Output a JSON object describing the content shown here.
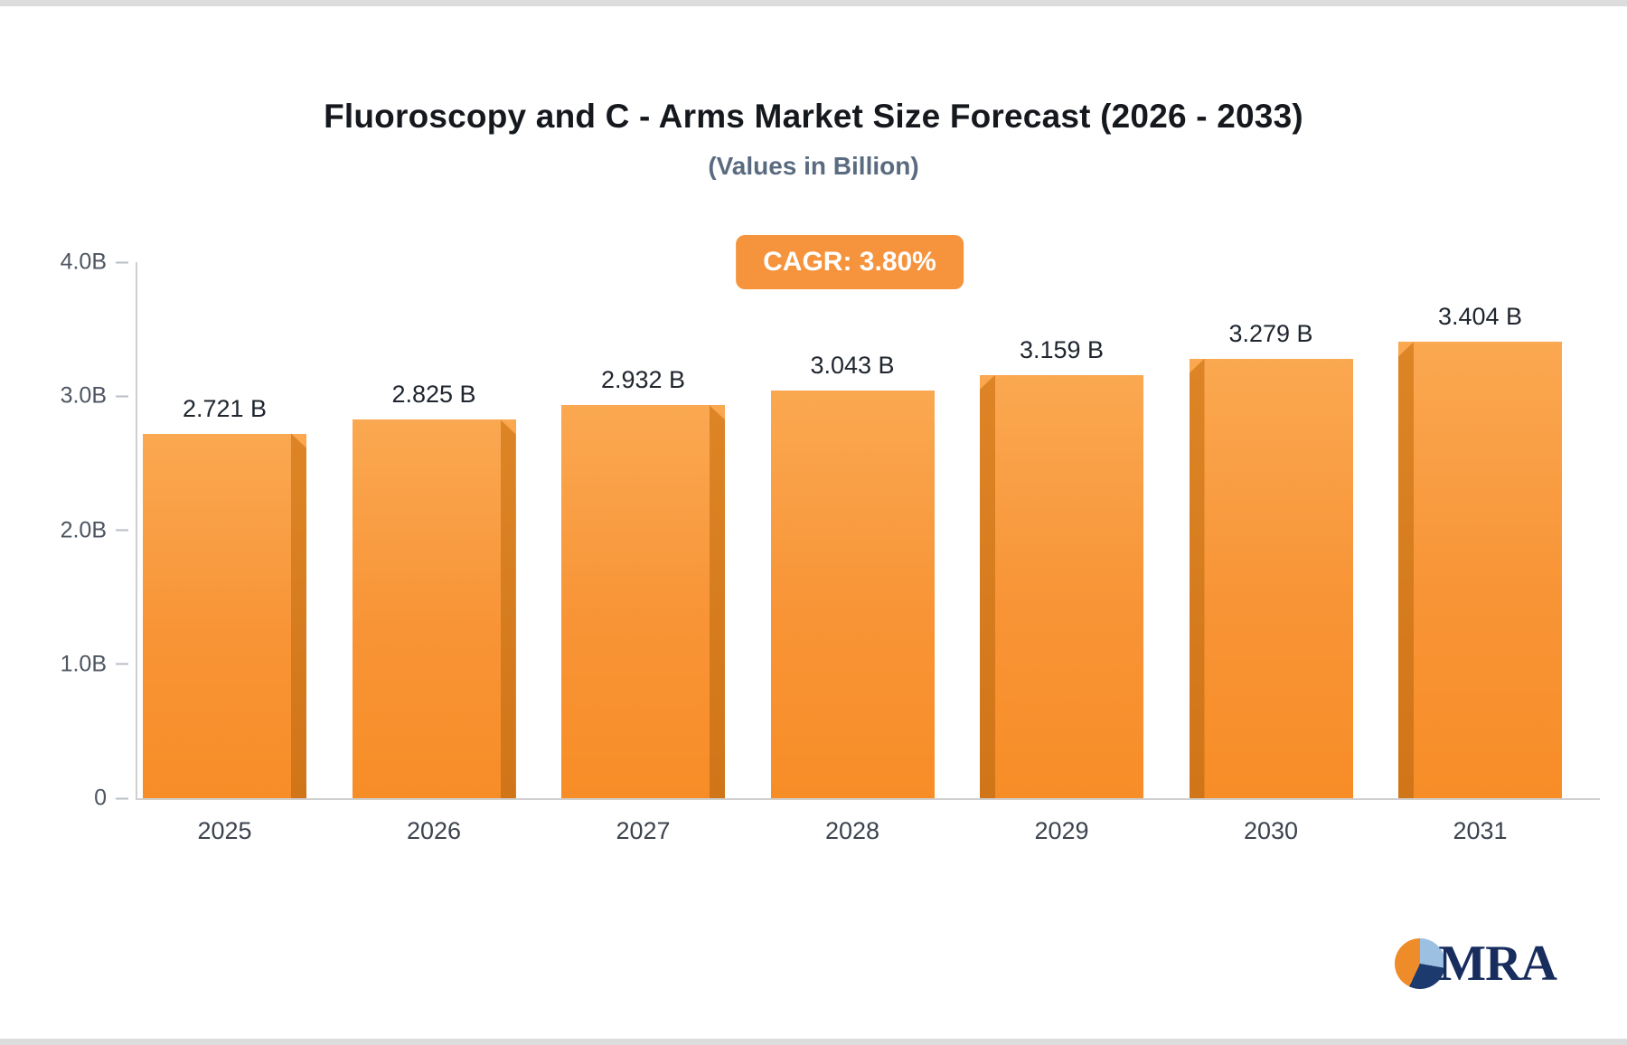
{
  "title": "Fluoroscopy and C - Arms Market Size Forecast (2026 - 2033)",
  "subtitle": "(Values in Billion)",
  "cagr_badge": "CAGR: 3.80%",
  "logo": {
    "text": "MRA"
  },
  "chart_data": {
    "type": "bar",
    "title": "Fluoroscopy and C - Arms Market Size Forecast (2026 - 2033)",
    "subtitle": "(Values in Billion)",
    "categories": [
      "2025",
      "2026",
      "2027",
      "2028",
      "2029",
      "2030",
      "2031"
    ],
    "values": [
      2.721,
      2.825,
      2.932,
      3.043,
      3.159,
      3.279,
      3.404
    ],
    "value_labels": [
      "2.721 B",
      "2.825 B",
      "2.932 B",
      "3.043 B",
      "3.159 B",
      "3.279 B",
      "3.404 B"
    ],
    "xlabel": "",
    "ylabel": "",
    "ylim": [
      0,
      4
    ],
    "yticks": [
      {
        "label": "0",
        "value": 0
      },
      {
        "label": "1.0B",
        "value": 1
      },
      {
        "label": "2.0B",
        "value": 2
      },
      {
        "label": "3.0B",
        "value": 3
      },
      {
        "label": "4.0B",
        "value": 4
      }
    ],
    "grid": false,
    "legend": false,
    "bar_color_top": "#faa851",
    "bar_color_bottom": "#f78d27",
    "bar_side_color": "#d07518",
    "annotation": "CAGR: 3.80%"
  }
}
